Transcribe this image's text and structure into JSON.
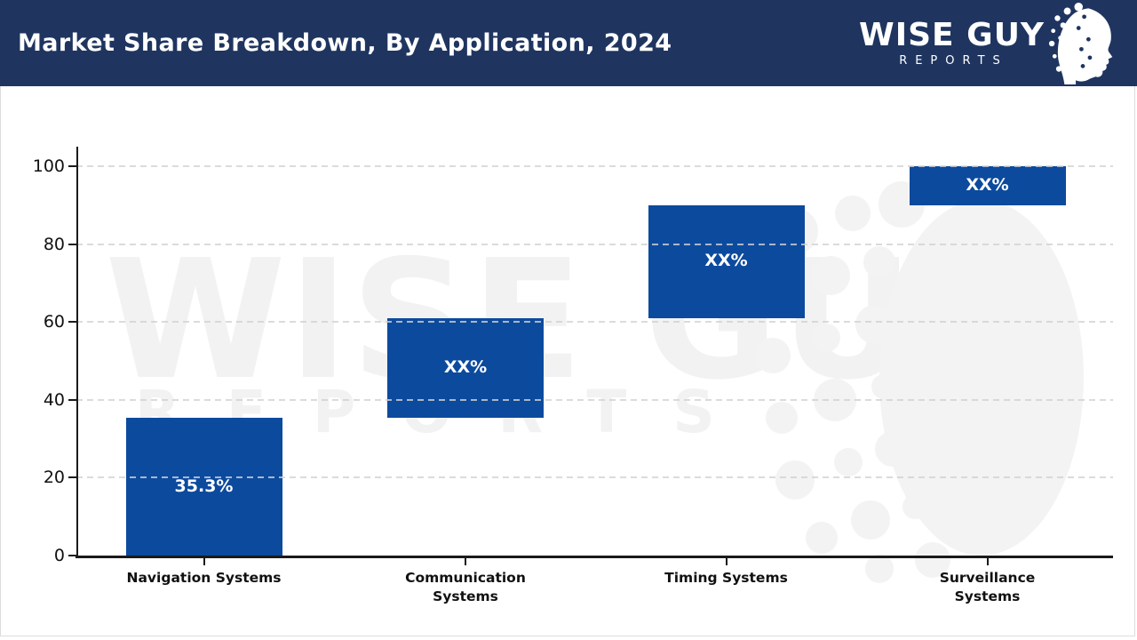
{
  "header": {
    "title": "Market Share Breakdown, By Application, 2024",
    "logo": {
      "main": "WISE GUY",
      "sub": "REPORTS"
    }
  },
  "watermark": {
    "line1": "WISE GUY",
    "line2": "REPORTS"
  },
  "chart_data": {
    "type": "bar",
    "subtype": "waterfall-stacked-market-share",
    "title": "Market Share Breakdown, By Application, 2024",
    "categories": [
      "Navigation Systems",
      "Communication Systems",
      "Timing Systems",
      "Surveillance Systems"
    ],
    "segments": [
      {
        "category": "Navigation Systems",
        "label_lines": [
          "Navigation Systems"
        ],
        "start": 0,
        "end": 35.3,
        "value": 35.3,
        "data_label": "35.3%"
      },
      {
        "category": "Communication Systems",
        "label_lines": [
          "Communication",
          "Systems"
        ],
        "start": 35.3,
        "end": 61,
        "value": 25.7,
        "data_label": "XX%"
      },
      {
        "category": "Timing Systems",
        "label_lines": [
          "Timing Systems"
        ],
        "start": 61,
        "end": 90,
        "value": 29,
        "data_label": "XX%"
      },
      {
        "category": "Surveillance Systems",
        "label_lines": [
          "Surveillance",
          "Systems"
        ],
        "start": 90,
        "end": 100,
        "value": 10,
        "data_label": "XX%"
      }
    ],
    "ylim": [
      0,
      100
    ],
    "yticks": [
      0,
      20,
      40,
      60,
      80,
      100
    ],
    "grid": "horizontal dashed",
    "legend": "none",
    "bar_color": "#0c4a9e",
    "data_label_color": "#ffffff"
  },
  "colors": {
    "header_bg": "#1f3560",
    "bar": "#0c4a9e",
    "grid": "#d2d2d2",
    "axis": "#1a1a1a",
    "watermark": "#f2f2f2",
    "frame_border": "#dcdcdc"
  }
}
